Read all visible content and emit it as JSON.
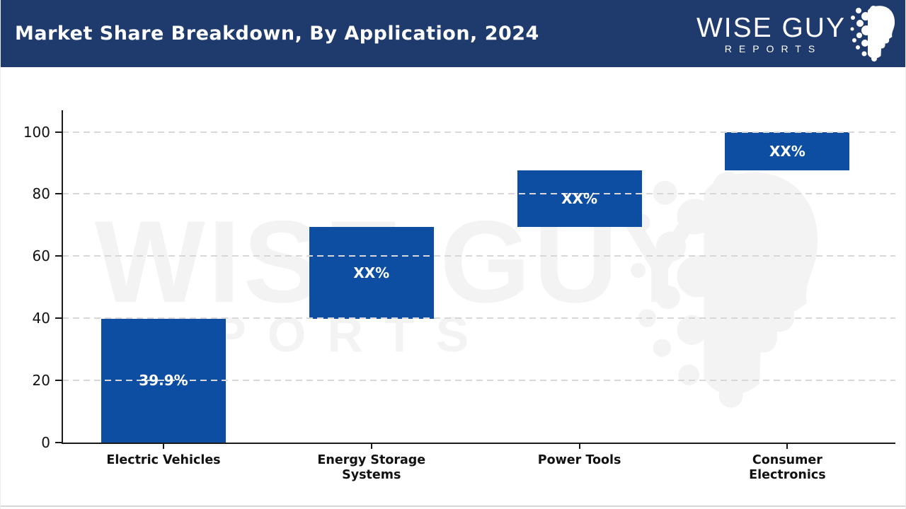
{
  "header": {
    "title": "Market Share Breakdown, By Application, 2024",
    "bg_color": "#1f3a6c",
    "logo": {
      "primary": "WISE GUY",
      "secondary": "REPORTS",
      "face_icon": "dotted-face-profile"
    }
  },
  "watermark": {
    "primary": "WISE GUY",
    "secondary": "REPORTS",
    "face_icon": "dotted-face-profile"
  },
  "chart_data": {
    "type": "bar",
    "subtype": "waterfall",
    "title": "Market Share Breakdown, By Application, 2024",
    "categories": [
      "Electric Vehicles",
      "Energy Storage Systems",
      "Power Tools",
      "Consumer Electronics"
    ],
    "category_lines": [
      [
        "Electric Vehicles"
      ],
      [
        "Energy Storage",
        "Systems"
      ],
      [
        "Power Tools"
      ],
      [
        "Consumer",
        "Electronics"
      ]
    ],
    "bars": [
      {
        "category": "Electric Vehicles",
        "label": "39.9%",
        "start": 0,
        "end": 39.9
      },
      {
        "category": "Energy Storage Systems",
        "label": "XX%",
        "start": 39.9,
        "end": 69.4
      },
      {
        "category": "Power Tools",
        "label": "XX%",
        "start": 69.4,
        "end": 87.6
      },
      {
        "category": "Consumer Electronics",
        "label": "XX%",
        "start": 87.6,
        "end": 100
      }
    ],
    "ylim": [
      0,
      106
    ],
    "yticks": [
      0,
      20,
      40,
      60,
      80,
      100
    ],
    "grid": "horizontal-dashed",
    "legend": "none",
    "bar_color": "#0d4da2",
    "bar_label_color": "#ffffff",
    "axis_color": "#1a1a1a"
  }
}
